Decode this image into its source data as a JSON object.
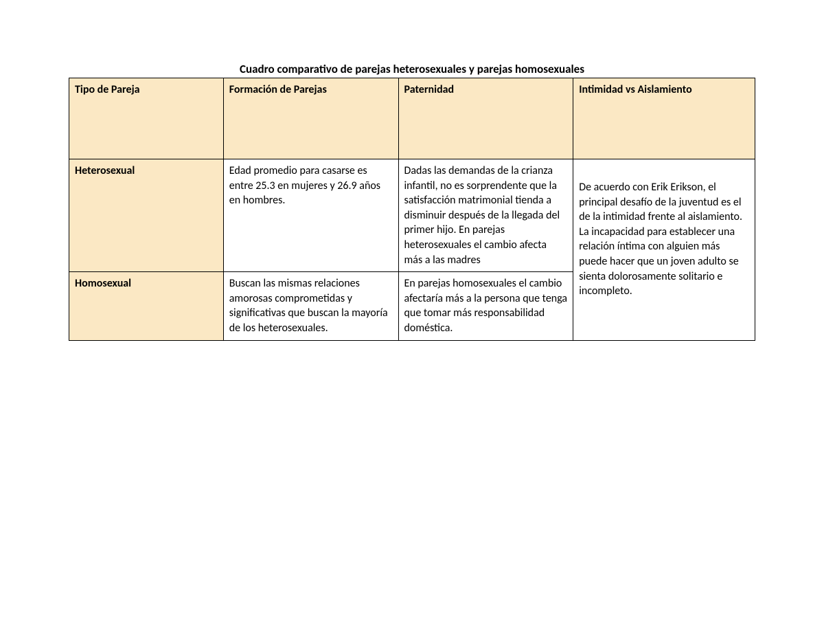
{
  "title": "Cuadro comparativo de parejas heterosexuales y parejas homosexuales",
  "table": {
    "type": "table",
    "header_background": "#fbe8c4",
    "border_color": "#000000",
    "text_color": "#000000",
    "font_size_pt": 12,
    "title_font_size_pt": 13,
    "columns": [
      {
        "key": "tipo",
        "label": "Tipo de Pareja",
        "width_pct": 22.5
      },
      {
        "key": "formacion",
        "label": "Formación de Parejas",
        "width_pct": 25.5
      },
      {
        "key": "paternidad",
        "label": "Paternidad",
        "width_pct": 25.5
      },
      {
        "key": "intimidad",
        "label": "Intimidad vs Aislamiento",
        "width_pct": 26.5
      }
    ],
    "rows": [
      {
        "tipo": "Heterosexual",
        "formacion": "Edad promedio para casarse es entre 25.3 en mujeres y 26.9 años en hombres.",
        "paternidad": "Dadas las demandas de la crianza infantil, no es sorprendente que la satisfacción matrimonial tienda a disminuir después de la llegada del primer hijo. En parejas heterosexuales el cambio afecta más a las madres"
      },
      {
        "tipo": "Homosexual",
        "formacion": "Buscan las mismas relaciones amorosas comprometidas y significativas que buscan la mayoría de los heterosexuales.",
        "paternidad": "En parejas homosexuales el cambio afectaría más a la persona que tenga que tomar más responsabilidad doméstica."
      }
    ],
    "intimidad_merged": "De acuerdo con Erik Erikson, el principal desafío de la juventud es el de la intimidad frente al aislamiento. La incapacidad para establecer una relación íntima con alguien más puede hacer que un joven adulto se sienta dolorosamente solitario e incompleto."
  }
}
